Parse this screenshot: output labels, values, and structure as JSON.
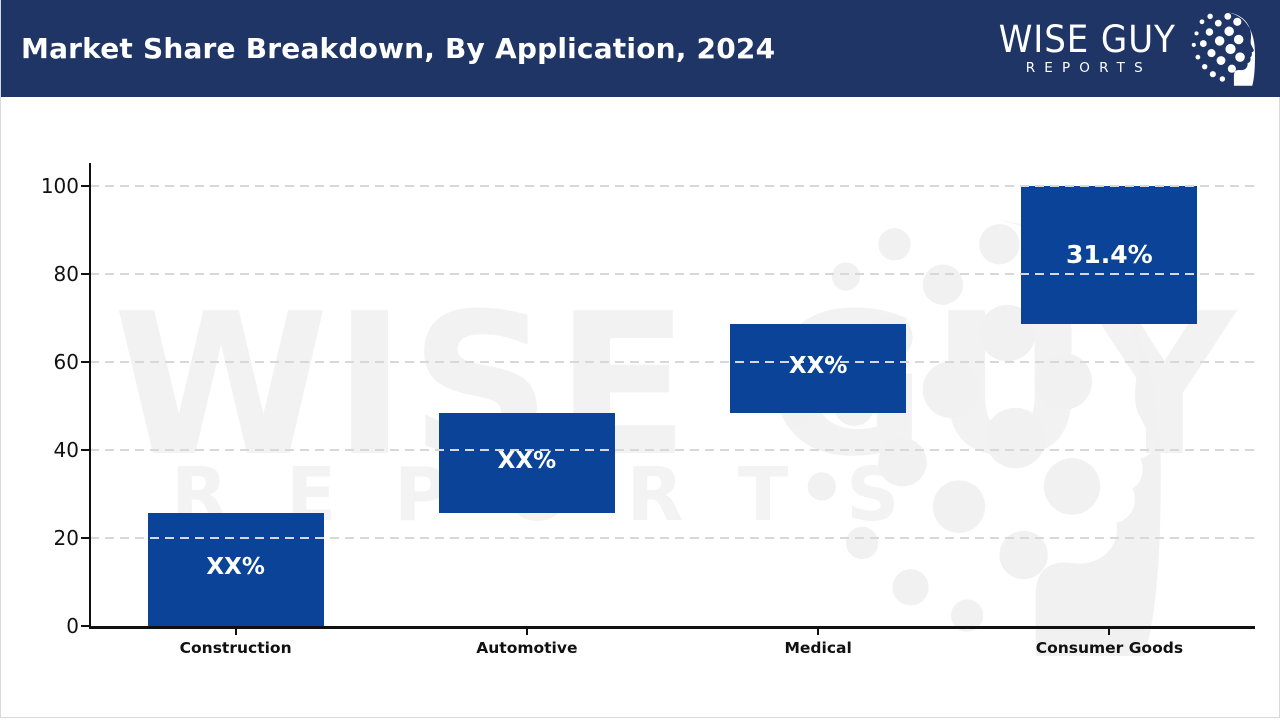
{
  "header": {
    "title": "Market Share Breakdown, By Application, 2024",
    "logo": {
      "line1": "WISE GUY",
      "line2": "REPORTS"
    }
  },
  "watermark": {
    "line1": "WISE GUY",
    "line2": "REPORTS"
  },
  "colors": {
    "header_bg": "#1f3566",
    "bar": "#0a4398",
    "bar_label": "#ffffff",
    "grid": "#d8d8d8",
    "axis": "#111111",
    "watermark": "#f2f2f2"
  },
  "chart_data": {
    "type": "bar",
    "subtype": "waterfall",
    "title": "Market Share Breakdown, By Application, 2024",
    "categories": [
      "Construction",
      "Automotive",
      "Medical",
      "Consumer Goods"
    ],
    "segments": [
      {
        "category": "Construction",
        "start": 0,
        "end": 25.7,
        "label": "XX%"
      },
      {
        "category": "Automotive",
        "start": 25.7,
        "end": 48.5,
        "label": "XX%"
      },
      {
        "category": "Medical",
        "start": 48.5,
        "end": 68.6,
        "label": "XX%"
      },
      {
        "category": "Consumer Goods",
        "start": 68.6,
        "end": 100,
        "label": "31.4%"
      }
    ],
    "yticks": [
      0,
      20,
      40,
      60,
      80,
      100
    ],
    "ylim": [
      0,
      105
    ],
    "xlabel": "",
    "ylabel": "",
    "grid": "dashed-horizontal",
    "legend": "none"
  }
}
